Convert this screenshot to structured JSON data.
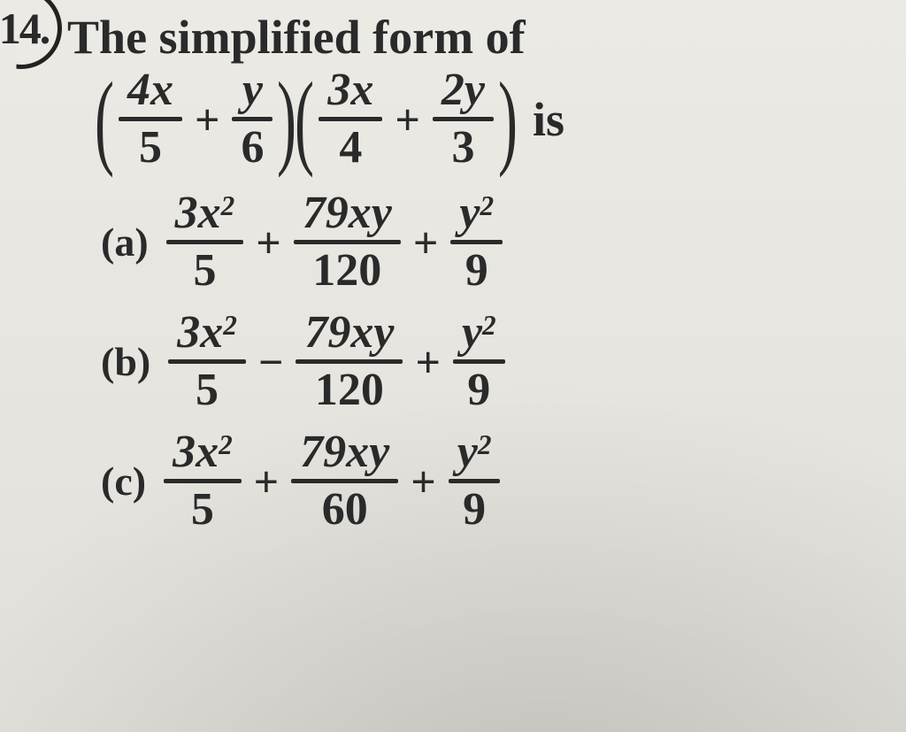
{
  "question": {
    "number": "14.",
    "stem_text": "The simplified form of",
    "factor1": {
      "t1": {
        "num": "4x",
        "den": "5"
      },
      "op": "+",
      "t2": {
        "num": "y",
        "den": "6"
      }
    },
    "factor2": {
      "t1": {
        "num": "3x",
        "den": "4"
      },
      "op": "+",
      "t2": {
        "num": "2y",
        "den": "3"
      }
    },
    "after_text": "is"
  },
  "options": {
    "a": {
      "label": "(a)",
      "t1": {
        "num": "3x²",
        "den": "5"
      },
      "op1": "+",
      "t2": {
        "num": "79xy",
        "den": "120"
      },
      "op2": "+",
      "t3": {
        "num": "y²",
        "den": "9"
      }
    },
    "b": {
      "label": "(b)",
      "t1": {
        "num": "3x²",
        "den": "5"
      },
      "op1": "−",
      "t2": {
        "num": "79xy",
        "den": "120"
      },
      "op2": "+",
      "t3": {
        "num": "y²",
        "den": "9"
      }
    },
    "c": {
      "label": "(c)",
      "t1": {
        "num": "3x²",
        "den": "5"
      },
      "op1": "+",
      "t2": {
        "num": "79xy",
        "den": "60"
      },
      "op2": "+",
      "t3": {
        "num": "y²",
        "den": "9"
      }
    }
  }
}
